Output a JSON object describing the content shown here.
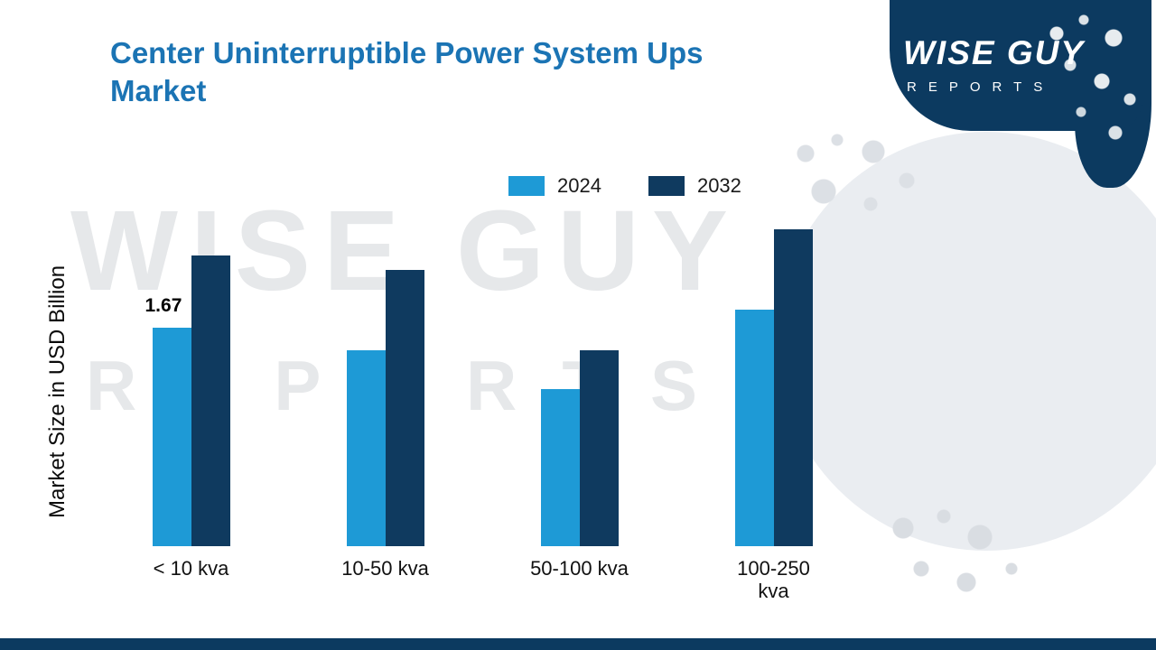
{
  "title": "Center Uninterruptible Power System Ups Market",
  "logo": {
    "name": "WISE GUY",
    "subtitle": "REPORTS"
  },
  "watermark": {
    "line1": "WISE GUY",
    "line2": "REPORTS"
  },
  "colors": {
    "bar_2024": "#1E9AD6",
    "bar_2032": "#0F3A5F",
    "title_text": "#1B74B4",
    "navy": "#0C3A60",
    "circle": "#EAEDF1",
    "watermark_text": "#E6E8EA"
  },
  "chart_data": {
    "type": "bar",
    "categories": [
      "< 10 kva",
      "10-50 kva",
      "50-100 kva",
      "100-250\nkva"
    ],
    "series": [
      {
        "name": "2024",
        "color": "#1E9AD6",
        "values": [
          1.67,
          1.5,
          1.2,
          1.81
        ]
      },
      {
        "name": "2032",
        "color": "#0F3A5F",
        "values": [
          2.22,
          2.11,
          1.5,
          2.42
        ]
      }
    ],
    "title": "Center Uninterruptible Power System Ups Market",
    "xlabel": "",
    "ylabel": "Market Size in USD Billion",
    "ylim": [
      0,
      2.6
    ],
    "grid": false,
    "legend_position": "top-center",
    "annotations": [
      {
        "series": 0,
        "category": 0,
        "text": "1.67"
      }
    ]
  }
}
